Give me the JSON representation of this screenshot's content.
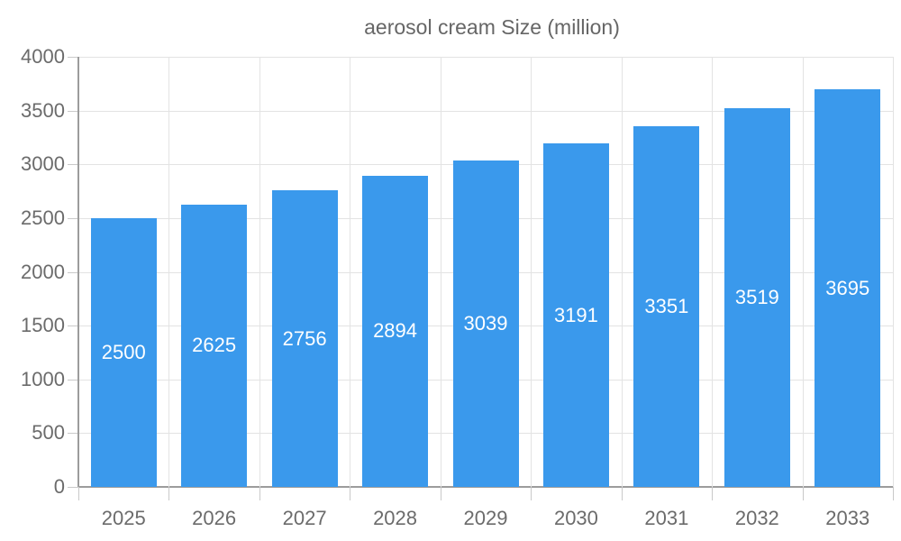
{
  "legend": {
    "label": "aerosol cream Size (million)"
  },
  "chart_data": {
    "type": "bar",
    "title": "",
    "xlabel": "",
    "ylabel": "",
    "categories": [
      "2025",
      "2026",
      "2027",
      "2028",
      "2029",
      "2030",
      "2031",
      "2032",
      "2033"
    ],
    "series": [
      {
        "name": "aerosol cream Size (million)",
        "values": [
          2500,
          2625,
          2756,
          2894,
          3039,
          3191,
          3351,
          3519,
          3695
        ]
      }
    ],
    "value_labels": [
      "2500",
      "2625",
      "2756",
      "2894",
      "3039",
      "3191",
      "3351",
      "3519",
      "3695"
    ],
    "ylim": [
      0,
      4000
    ],
    "ytick_step": 500,
    "ytick_labels": [
      "0",
      "500",
      "1000",
      "1500",
      "2000",
      "2500",
      "3000",
      "3500",
      "4000"
    ],
    "grid": "on",
    "legend_position": "top-center",
    "colors": {
      "bar": "#3a99ec",
      "axis_label": "#6b6b6b",
      "legend_text": "#666666",
      "gridline": "#e3e3e3",
      "axis_line": "#9c9c9c",
      "value_label": "#ffffff"
    }
  }
}
